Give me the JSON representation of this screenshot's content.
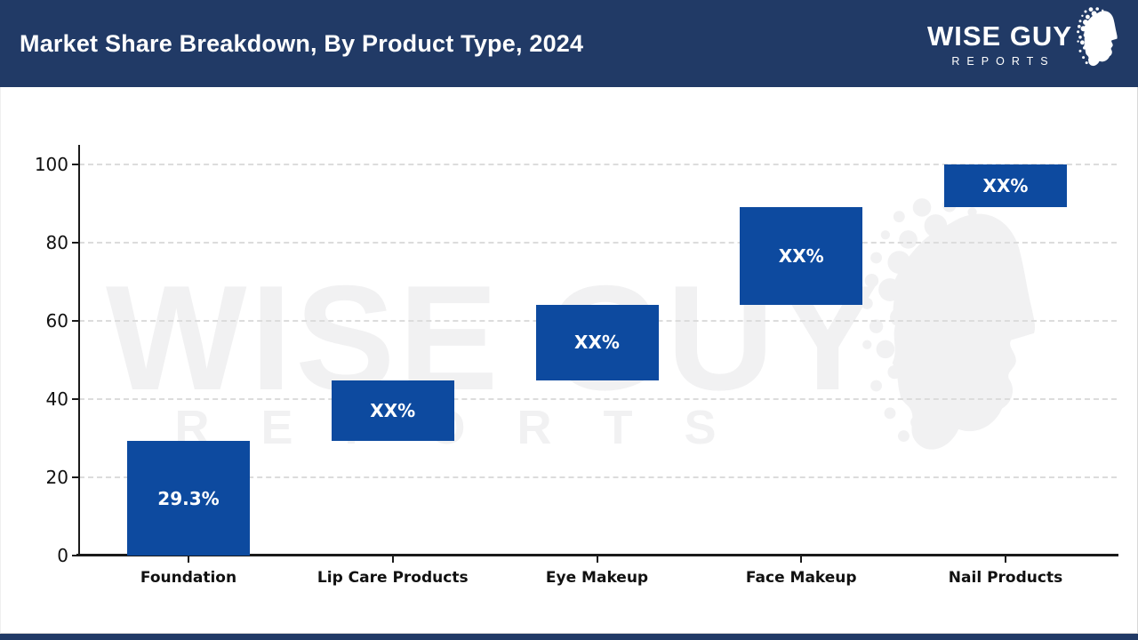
{
  "header": {
    "title": "Market Share Breakdown, By Product Type, 2024",
    "logo": {
      "name": "WISE GUY",
      "tagline": "REPORTS"
    }
  },
  "watermark": {
    "line1": "WISE GUY",
    "line2": "REPORTS"
  },
  "chart_data": {
    "type": "bar",
    "subtype": "waterfall",
    "title": "Market Share Breakdown, By Product Type, 2024",
    "categories": [
      "Foundation",
      "Lip Care Products",
      "Eye Makeup",
      "Face Makeup",
      "Nail Products"
    ],
    "segments": [
      {
        "category": "Foundation",
        "start": 0,
        "end": 29.3,
        "label": "29.3%"
      },
      {
        "category": "Lip Care Products",
        "start": 29.3,
        "end": 44.8,
        "label": "XX%"
      },
      {
        "category": "Eye Makeup",
        "start": 44.8,
        "end": 64.2,
        "label": "XX%"
      },
      {
        "category": "Face Makeup",
        "start": 64.2,
        "end": 89.2,
        "label": "XX%"
      },
      {
        "category": "Nail Products",
        "start": 89.2,
        "end": 100,
        "label": "XX%"
      }
    ],
    "xlabel": "",
    "ylabel": "",
    "ylim": [
      0,
      100
    ],
    "yticks": [
      0,
      20,
      40,
      60,
      80,
      100
    ],
    "grid": "horizontal-dashed",
    "legend": "none",
    "bar_color": "#0d4a9f",
    "bar_label_color": "#ffffff",
    "axis_color": "#1a1a1a",
    "header_color": "#213a66",
    "watermark_color": "#f1f1f2"
  }
}
